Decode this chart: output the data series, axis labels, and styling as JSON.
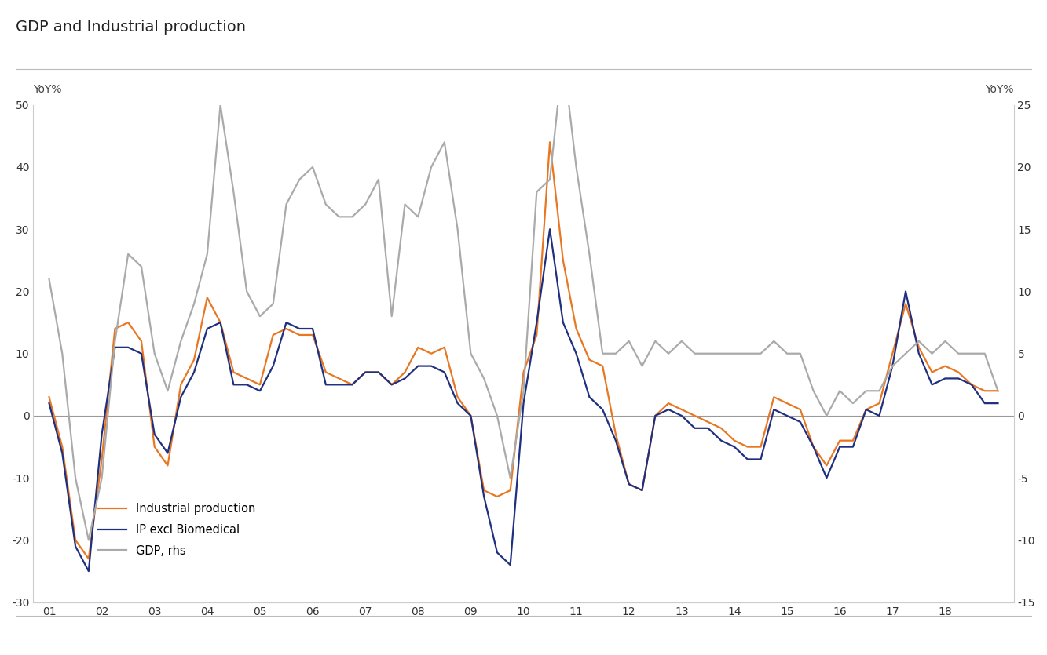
{
  "title": "GDP and Industrial production",
  "ylabel_left": "YoY%",
  "ylabel_right": "YoY%",
  "ylim_left": [
    -30,
    50
  ],
  "ylim_right": [
    -15,
    25
  ],
  "yticks_left": [
    -30,
    -20,
    -10,
    0,
    10,
    20,
    30,
    40,
    50
  ],
  "yticks_right": [
    -15,
    -10,
    -5,
    0,
    5,
    10,
    15,
    20,
    25
  ],
  "xtick_labels": [
    "01",
    "02",
    "03",
    "04",
    "05",
    "06",
    "07",
    "08",
    "09",
    "10",
    "11",
    "12",
    "13",
    "14",
    "15",
    "16",
    "17",
    "18"
  ],
  "ip_color": "#E87722",
  "ip_excl_color": "#1F3080",
  "gdp_color": "#AAAAAA",
  "legend_labels": [
    "Industrial production",
    "IP excl Biomedical",
    "GDP, rhs"
  ],
  "background_color": "#FFFFFF",
  "title_fontsize": 14,
  "axis_fontsize": 10,
  "legend_fontsize": 10.5,
  "x": [
    0.0,
    0.25,
    0.5,
    0.75,
    1.0,
    1.25,
    1.5,
    1.75,
    2.0,
    2.25,
    2.5,
    2.75,
    3.0,
    3.25,
    3.5,
    3.75,
    4.0,
    4.25,
    4.5,
    4.75,
    5.0,
    5.25,
    5.5,
    5.75,
    6.0,
    6.25,
    6.5,
    6.75,
    7.0,
    7.25,
    7.5,
    7.75,
    8.0,
    8.25,
    8.5,
    8.75,
    9.0,
    9.25,
    9.5,
    9.75,
    10.0,
    10.25,
    10.5,
    10.75,
    11.0,
    11.25,
    11.5,
    11.75,
    12.0,
    12.25,
    12.5,
    12.75,
    13.0,
    13.25,
    13.5,
    13.75,
    14.0,
    14.25,
    14.5,
    14.75,
    15.0,
    15.25,
    15.5,
    15.75,
    16.0,
    16.25,
    16.5,
    16.75,
    17.0,
    17.25,
    17.5,
    17.75,
    18.0
  ],
  "ip": [
    3.0,
    -5.0,
    -20.0,
    -23.0,
    -7.0,
    14.0,
    15.0,
    12.0,
    -5.0,
    -8.0,
    5.0,
    9.0,
    19.0,
    15.0,
    7.0,
    6.0,
    5.0,
    13.0,
    14.0,
    13.0,
    13.0,
    7.0,
    6.0,
    5.0,
    7.0,
    7.0,
    5.0,
    7.0,
    11.0,
    10.0,
    11.0,
    3.0,
    0.0,
    -12.0,
    -13.0,
    -12.0,
    7.0,
    13.0,
    44.0,
    25.0,
    14.0,
    9.0,
    8.0,
    -3.0,
    -11.0,
    -12.0,
    0.0,
    2.0,
    1.0,
    0.0,
    -1.0,
    -2.0,
    -4.0,
    -5.0,
    -5.0,
    3.0,
    2.0,
    1.0,
    -5.0,
    -8.0,
    -4.0,
    -4.0,
    1.0,
    2.0,
    10.0,
    18.0,
    11.0,
    7.0,
    8.0,
    7.0,
    5.0,
    4.0,
    4.0
  ],
  "ip_excl": [
    2.0,
    -6.0,
    -21.0,
    -25.0,
    -3.0,
    11.0,
    11.0,
    10.0,
    -3.0,
    -6.0,
    3.0,
    7.0,
    14.0,
    15.0,
    5.0,
    5.0,
    4.0,
    8.0,
    15.0,
    14.0,
    14.0,
    5.0,
    5.0,
    5.0,
    7.0,
    7.0,
    5.0,
    6.0,
    8.0,
    8.0,
    7.0,
    2.0,
    0.0,
    -13.0,
    -22.0,
    -24.0,
    2.0,
    15.0,
    30.0,
    15.0,
    10.0,
    3.0,
    1.0,
    -4.0,
    -11.0,
    -12.0,
    0.0,
    1.0,
    0.0,
    -2.0,
    -2.0,
    -4.0,
    -5.0,
    -7.0,
    -7.0,
    1.0,
    0.0,
    -1.0,
    -5.0,
    -10.0,
    -5.0,
    -5.0,
    1.0,
    0.0,
    8.0,
    20.0,
    10.0,
    5.0,
    6.0,
    6.0,
    5.0,
    2.0,
    2.0
  ],
  "gdp": [
    11.0,
    5.0,
    -5.0,
    -10.0,
    -5.0,
    6.0,
    13.0,
    12.0,
    5.0,
    2.0,
    6.0,
    9.0,
    13.0,
    25.0,
    18.0,
    10.0,
    8.0,
    9.0,
    17.0,
    19.0,
    20.0,
    17.0,
    16.0,
    16.0,
    17.0,
    19.0,
    8.0,
    17.0,
    16.0,
    20.0,
    22.0,
    15.0,
    5.0,
    3.0,
    0.0,
    -5.0,
    2.0,
    18.0,
    19.0,
    29.0,
    20.0,
    13.0,
    5.0,
    5.0,
    6.0,
    4.0,
    6.0,
    5.0,
    6.0,
    5.0,
    5.0,
    5.0,
    5.0,
    5.0,
    5.0,
    6.0,
    5.0,
    5.0,
    2.0,
    0.0,
    2.0,
    1.0,
    2.0,
    2.0,
    4.0,
    5.0,
    6.0,
    5.0,
    6.0,
    5.0,
    5.0,
    5.0,
    2.0
  ]
}
